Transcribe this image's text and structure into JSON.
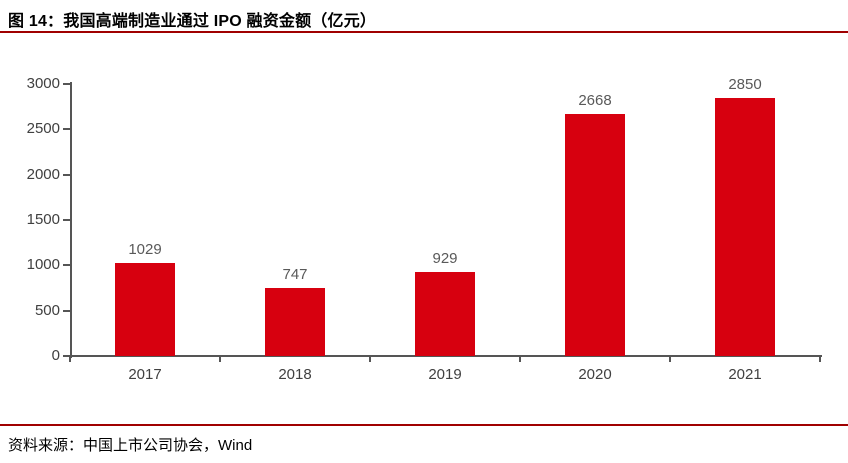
{
  "header": {
    "title": "图 14：我国高端制造业通过 IPO 融资金额（亿元）"
  },
  "footer": {
    "source": "资料来源：中国上市公司协会，Wind"
  },
  "colors": {
    "bar": "#D7000F",
    "rule": "#A00000",
    "axis": "#555555",
    "value_label": "#595959",
    "tick_label": "#404040"
  },
  "chart_data": {
    "type": "bar",
    "categories": [
      "2017",
      "2018",
      "2019",
      "2020",
      "2021"
    ],
    "values": [
      1029,
      747,
      929,
      2668,
      2850
    ],
    "title": "图 14：我国高端制造业通过 IPO 融资金额（亿元）",
    "xlabel": "",
    "ylabel": "",
    "ylim": [
      0,
      3000
    ],
    "yticks": [
      0,
      500,
      1000,
      1500,
      2000,
      2500,
      3000
    ],
    "grid": false,
    "legend": false,
    "data_labels": [
      1029,
      747,
      929,
      2668,
      2850
    ],
    "bar_color": "#D7000F"
  }
}
